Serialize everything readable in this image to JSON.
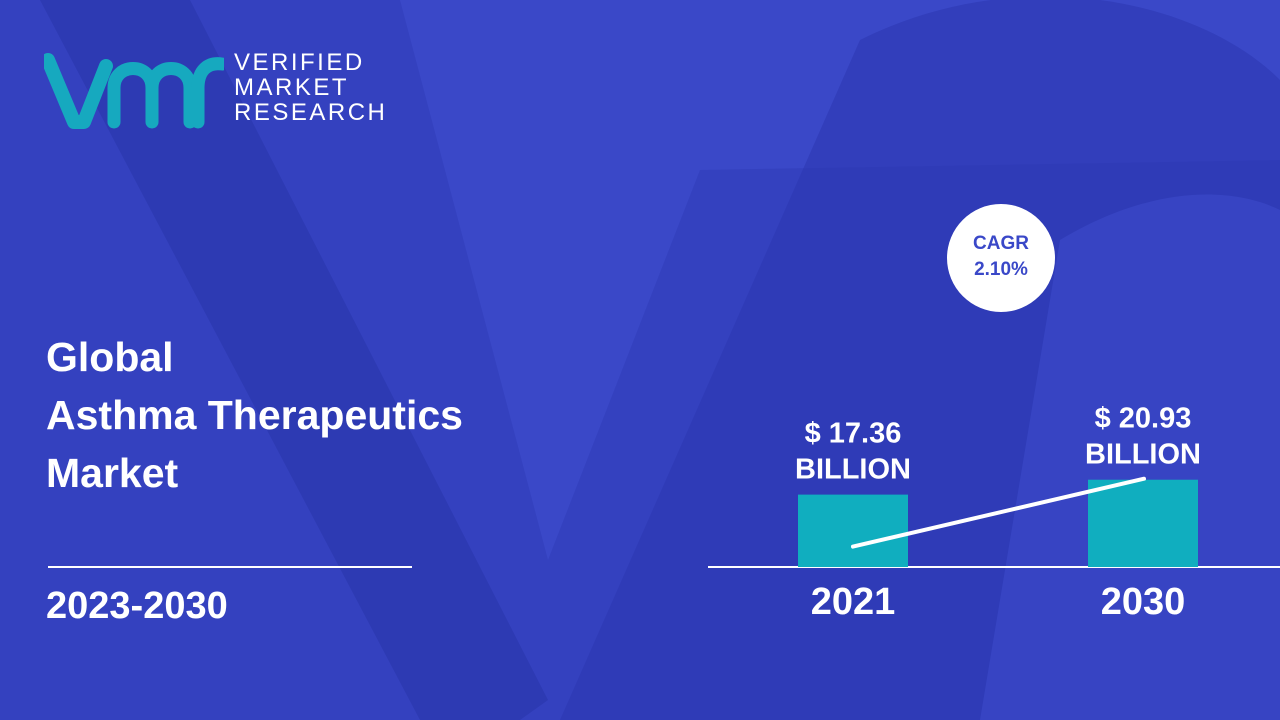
{
  "brand": {
    "line1": "VERIFIED",
    "line2": "MARKET",
    "line3": "RESEARCH"
  },
  "title": {
    "line1": "Global",
    "line2": "Asthma Therapeutics",
    "line3": "Market"
  },
  "period": "2023-2030",
  "colors": {
    "background": "#3a48c8",
    "background_dark": "#2c37b0",
    "bar": "#10aebf",
    "logo": "#16a9bf",
    "text": "#ffffff",
    "cagr_text": "#3a48c8"
  },
  "chart_data": {
    "type": "bar",
    "categories": [
      "2021",
      "2030"
    ],
    "values": [
      17.36,
      20.93
    ],
    "data_labels": [
      [
        "$ 17.36",
        "BILLION"
      ],
      [
        "$ 20.93",
        "BILLION"
      ]
    ],
    "annotation": {
      "line1": "CAGR",
      "line2": "2.10%"
    },
    "grid": false,
    "legend": "none"
  }
}
